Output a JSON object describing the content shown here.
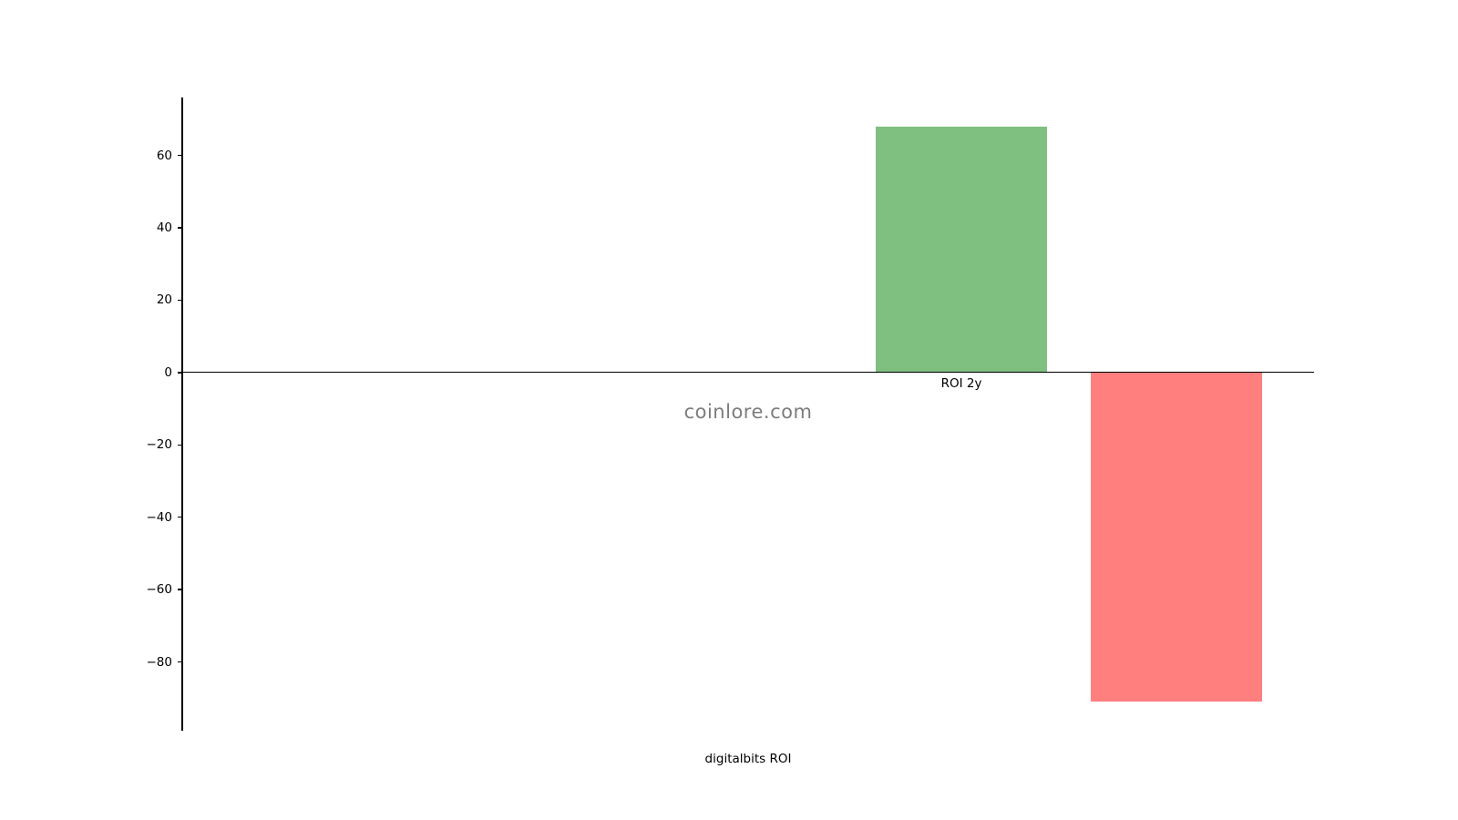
{
  "watermark": {
    "text": "coinlore.com",
    "color": "#7d7d7d"
  },
  "chart_data": {
    "type": "bar",
    "title": "",
    "xlabel": "digitalbits ROI",
    "ylabel": "",
    "categories": [
      "ROI 2y",
      ""
    ],
    "values": [
      68,
      -91
    ],
    "series": [
      {
        "name": "digitalbits ROI",
        "values": [
          68,
          -91
        ]
      }
    ],
    "bar_colors": [
      "#7fbf7f",
      "#ff7f7f"
    ],
    "positive_color": "#7fbf7f",
    "negative_color": "#ff7f7f",
    "ytick_values": [
      60,
      40,
      20,
      0,
      -20,
      -40,
      -60,
      -80
    ],
    "ytick_labels": [
      "60",
      "40",
      "20",
      "0",
      "−20",
      "−40",
      "−60",
      "−80"
    ],
    "ylim": [
      -99,
      76
    ],
    "grid": false,
    "legend_position": "none",
    "axis_color": "#000000",
    "annotations": []
  }
}
